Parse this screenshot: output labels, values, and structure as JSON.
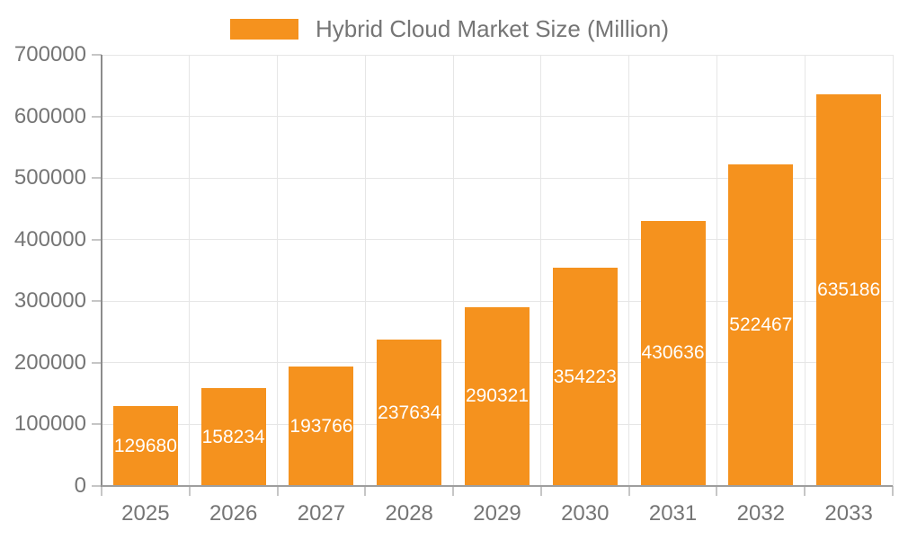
{
  "legend": {
    "label": "Hybrid Cloud Market Size (Million)"
  },
  "colors": {
    "bar": "#F5921E",
    "value_label": "#FFFFFF",
    "axis_text": "#757575",
    "grid": "#E6E6E6",
    "axis_line": "#9E9E9E",
    "y_axis_line": "#8C8C8C",
    "tick": "#C6C6C6",
    "background": "#FFFFFF"
  },
  "chart_data": {
    "type": "bar",
    "title": "",
    "xlabel": "",
    "ylabel": "",
    "categories": [
      "2025",
      "2026",
      "2027",
      "2028",
      "2029",
      "2030",
      "2031",
      "2032",
      "2033"
    ],
    "series": [
      {
        "name": "Hybrid Cloud Market Size (Million)",
        "values": [
          129680,
          158234,
          193766,
          237634,
          290321,
          354223,
          430636,
          522467,
          635186
        ]
      }
    ],
    "ylim": [
      0,
      700000
    ],
    "ytick_interval": 100000,
    "yticks": [
      0,
      100000,
      200000,
      300000,
      400000,
      500000,
      600000,
      700000
    ],
    "grid": true,
    "vertical_gridlines": true,
    "legend_position": "top-center",
    "value_labels": "inside-center"
  }
}
